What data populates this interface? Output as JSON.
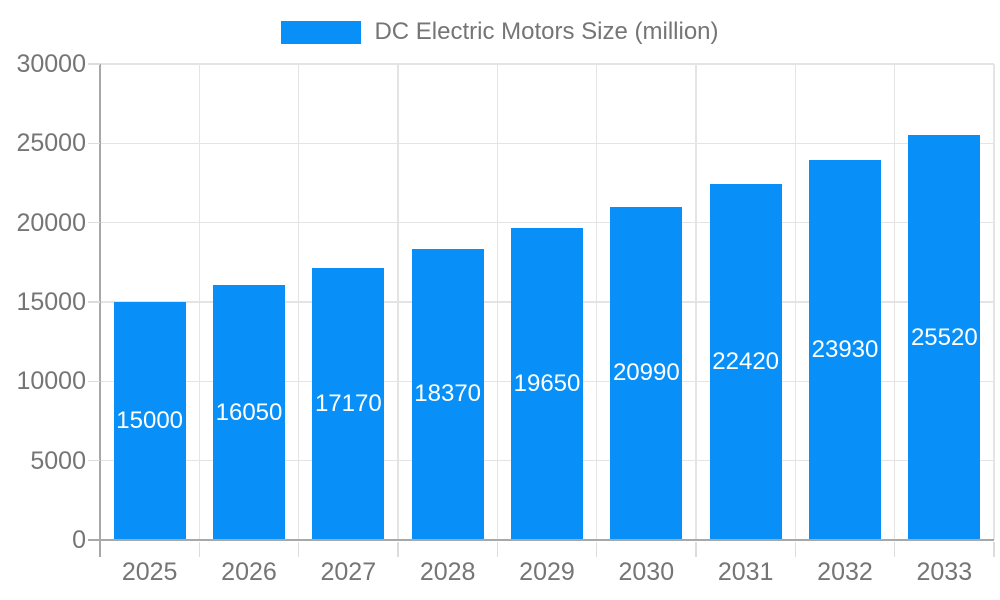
{
  "legend": {
    "label": "DC Electric Motors Size (million)"
  },
  "colors": {
    "bar": "#0890f8",
    "grid": "#e4e4e4",
    "axis": "#a8a8a8",
    "tick": "#dcdcdc",
    "text": "#757575",
    "value_label": "#ffffff",
    "background": "#ffffff"
  },
  "chart_data": {
    "type": "bar",
    "title": "DC Electric Motors Size (million)",
    "categories": [
      "2025",
      "2026",
      "2027",
      "2028",
      "2029",
      "2030",
      "2031",
      "2032",
      "2033"
    ],
    "values": [
      15000,
      16050,
      17170,
      18370,
      19650,
      20990,
      22420,
      23930,
      25520
    ],
    "xlabel": "",
    "ylabel": "",
    "ylim": [
      0,
      30000
    ],
    "ytick_step": 5000,
    "yticks": [
      "0",
      "5000",
      "10000",
      "15000",
      "20000",
      "25000",
      "30000"
    ],
    "grid": true,
    "legend_position": "top",
    "value_labels": "inside-center"
  }
}
